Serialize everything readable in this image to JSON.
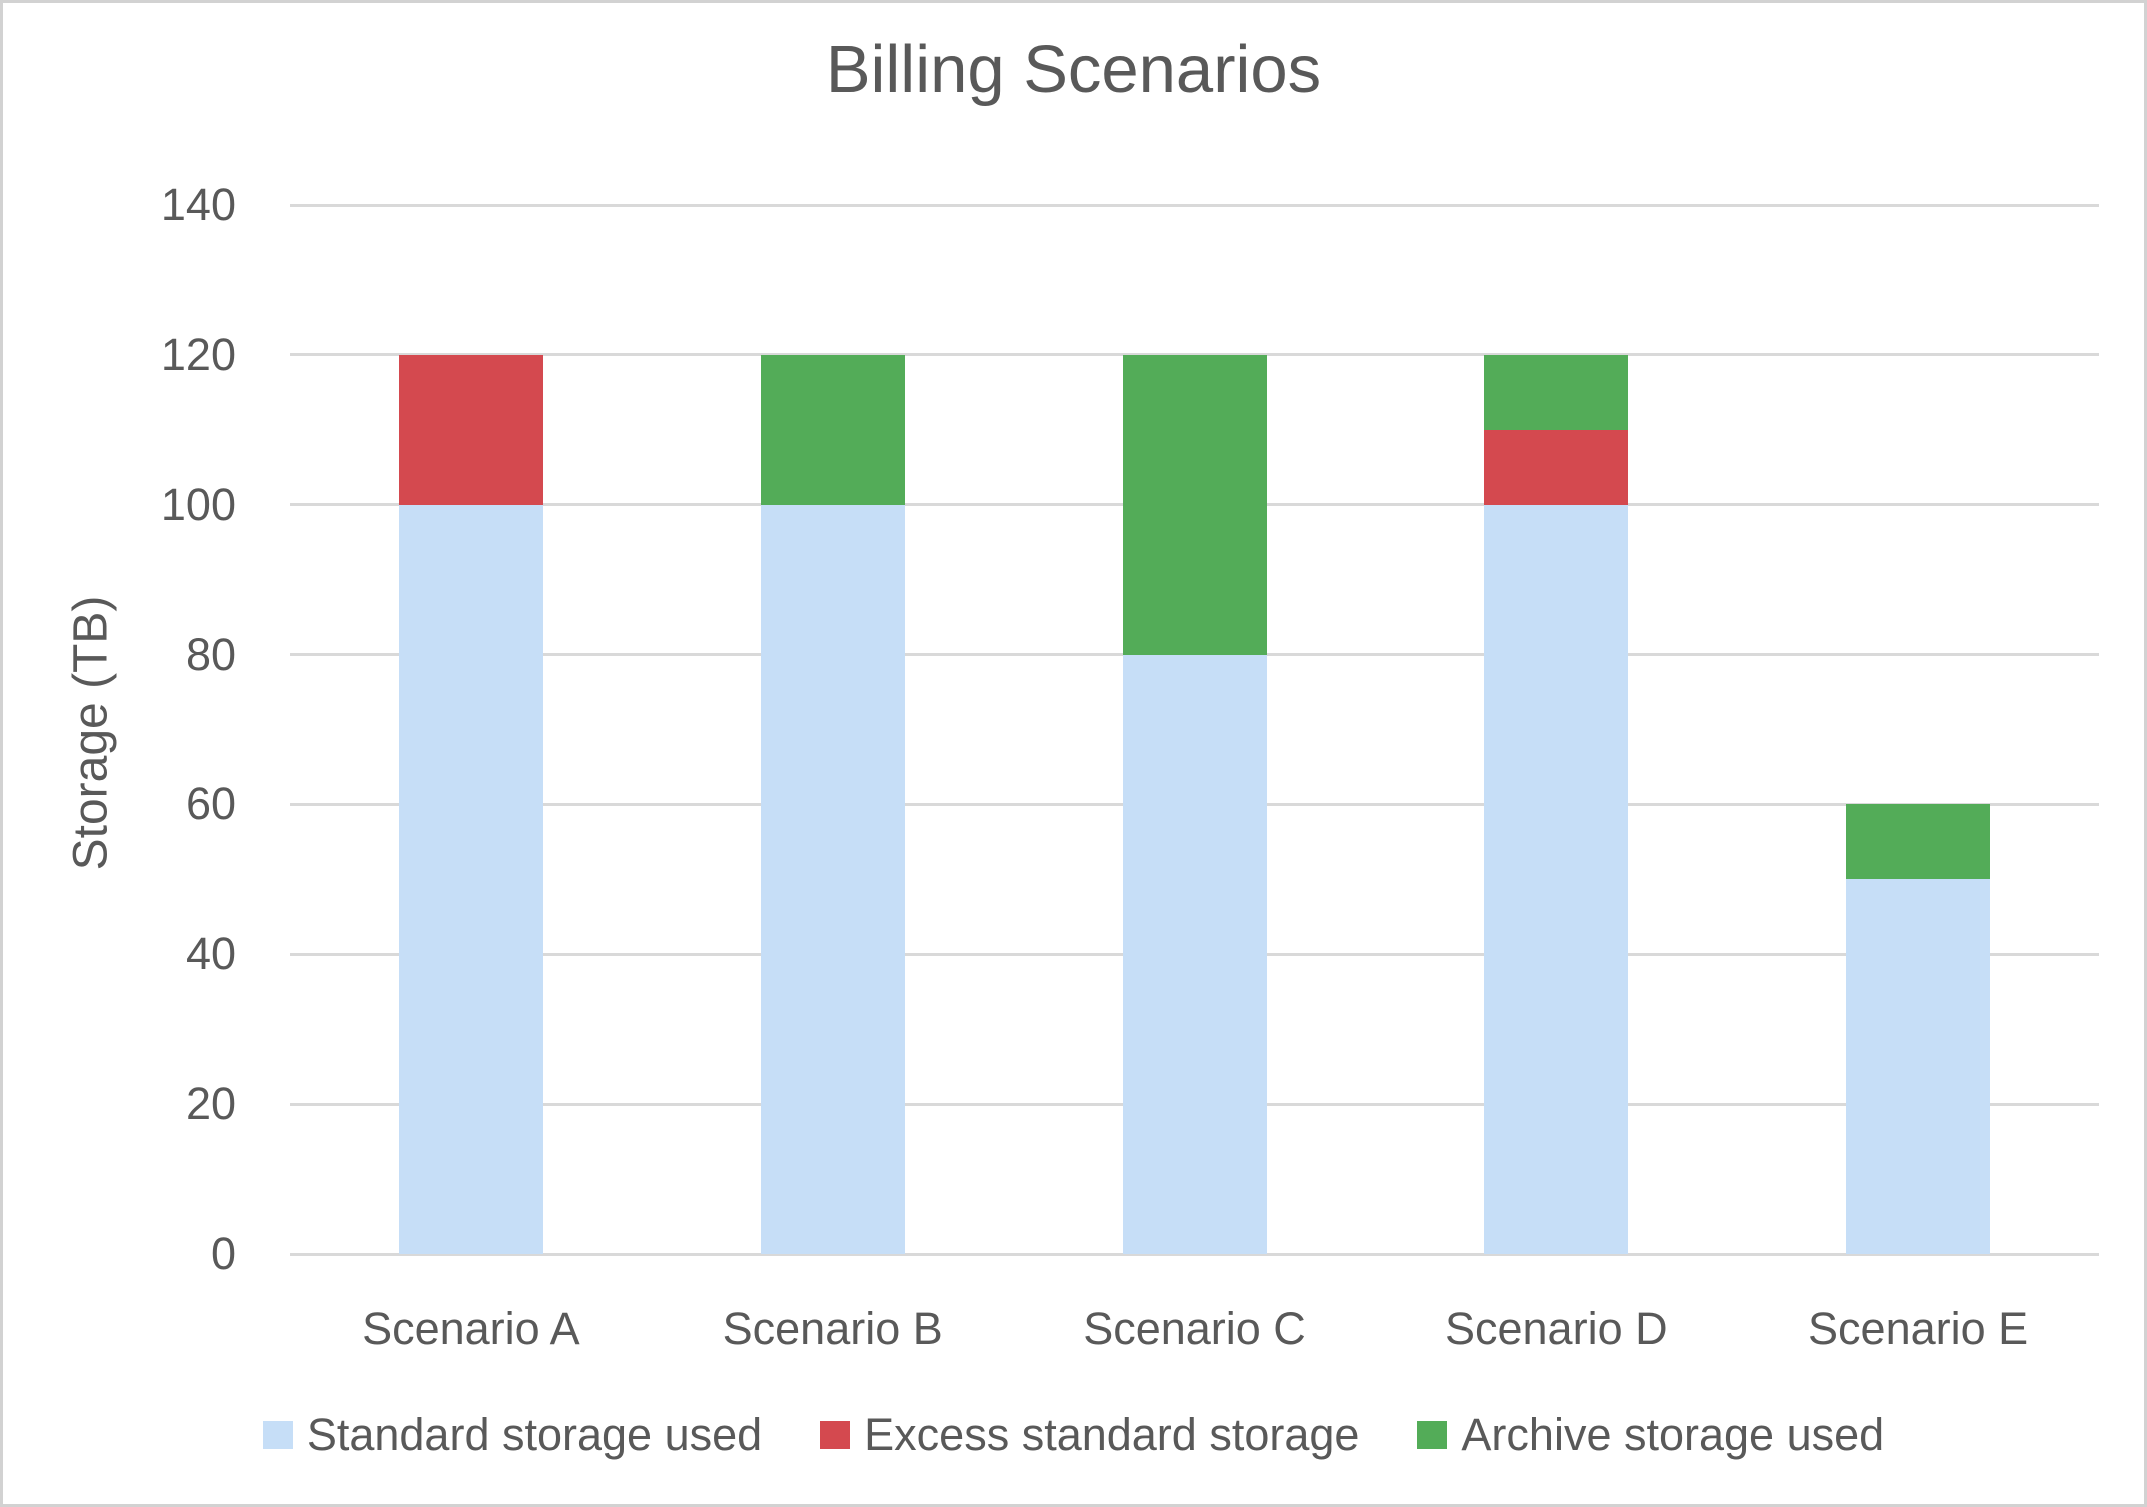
{
  "title": "Billing Scenarios",
  "y_axis_title": "Storage (TB)",
  "chart_data": {
    "type": "bar",
    "stacked": true,
    "title": "Billing Scenarios",
    "xlabel": "",
    "ylabel": "Storage (TB)",
    "categories": [
      "Scenario A",
      "Scenario B",
      "Scenario C",
      "Scenario D",
      "Scenario E"
    ],
    "series": [
      {
        "name": "Standard storage used",
        "color": "#c6def7",
        "values": [
          100,
          100,
          80,
          100,
          50
        ]
      },
      {
        "name": "Excess standard storage",
        "color": "#d4494f",
        "values": [
          20,
          0,
          0,
          10,
          0
        ]
      },
      {
        "name": "Archive storage used",
        "color": "#53ac58",
        "values": [
          0,
          20,
          40,
          10,
          10
        ]
      }
    ],
    "totals": [
      120,
      120,
      120,
      120,
      60
    ],
    "ylim": [
      0,
      140
    ],
    "yticks": [
      0,
      20,
      40,
      60,
      80,
      100,
      120,
      140
    ],
    "grid": true,
    "gridline_color": "#d9d9d9",
    "text_color": "#595959",
    "legend_position": "bottom"
  }
}
